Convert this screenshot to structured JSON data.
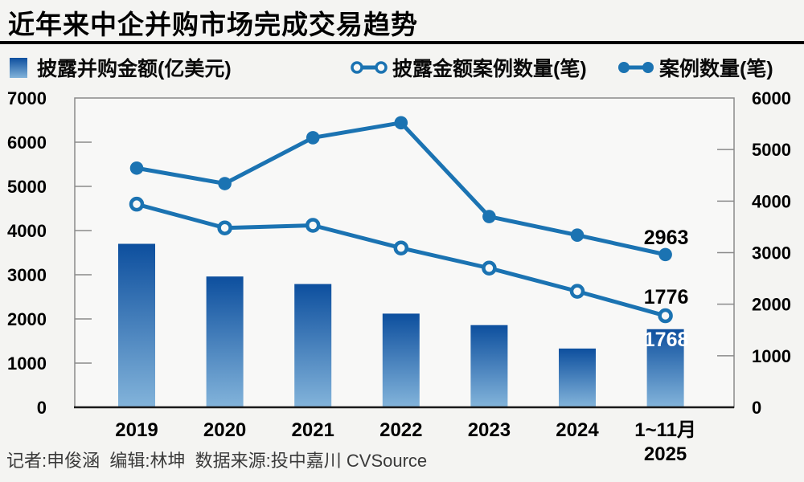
{
  "title": "近年来中企并购市场完成交易趋势",
  "legend": [
    {
      "label": "披露并购金额(亿美元)",
      "type": "bar"
    },
    {
      "label": "披露金额案例数量(笔)",
      "type": "line-open-marker"
    },
    {
      "label": "案例数量(笔)",
      "type": "line-filled-marker"
    }
  ],
  "footer": "记者:申俊涵  编辑:林坤  数据来源:投中嘉川 CVSource",
  "colors": {
    "line": "#1b73b2",
    "bar_top": "#0d4f9e",
    "bar_bottom": "#82b3da",
    "axis_box": "#8a8a8a",
    "axis_bottom": "#1a1a1a",
    "plot_background": "#f8f8f7",
    "page_background": "#f4f4f2",
    "annotation_text": "#000000",
    "annotation_on_bar": "#ffffff"
  },
  "chart_data": {
    "type": "bar+line combo",
    "categories": [
      [
        "2019"
      ],
      [
        "2020"
      ],
      [
        "2021"
      ],
      [
        "2022"
      ],
      [
        "2023"
      ],
      [
        "2024"
      ],
      [
        "1~11月",
        "2025"
      ]
    ],
    "series": [
      {
        "name": "披露并购金额(亿美元)",
        "type": "bar",
        "axis": "left",
        "values": [
          3700,
          2960,
          2790,
          2120,
          1860,
          1330,
          1768
        ]
      },
      {
        "name": "披露金额案例数量(笔)",
        "type": "line",
        "marker": "open",
        "axis": "right",
        "values": [
          3940,
          3480,
          3530,
          3090,
          2700,
          2250,
          1776
        ]
      },
      {
        "name": "案例数量(笔)",
        "type": "line",
        "marker": "filled",
        "axis": "right",
        "values": [
          4640,
          4340,
          5230,
          5520,
          3700,
          3340,
          2963
        ]
      }
    ],
    "left_axis": {
      "min": 0,
      "max": 7000,
      "step": 1000,
      "tick_labels": [
        "0",
        "1000",
        "2000",
        "3000",
        "4000",
        "5000",
        "6000",
        "7000"
      ]
    },
    "right_axis": {
      "min": 0,
      "max": 6000,
      "step": 1000,
      "tick_labels": [
        "0",
        "1000",
        "2000",
        "3000",
        "4000",
        "5000",
        "6000"
      ]
    },
    "grid": false,
    "legend_position": "top",
    "annotations": [
      {
        "text": "2963",
        "series": 2,
        "index": 6,
        "placement": "above",
        "offset": -13
      },
      {
        "text": "1776",
        "series": 1,
        "index": 6,
        "placement": "above",
        "offset": -15
      },
      {
        "text": "1768",
        "series": 0,
        "index": 6,
        "placement": "inside-bar",
        "offset": 21
      }
    ]
  }
}
